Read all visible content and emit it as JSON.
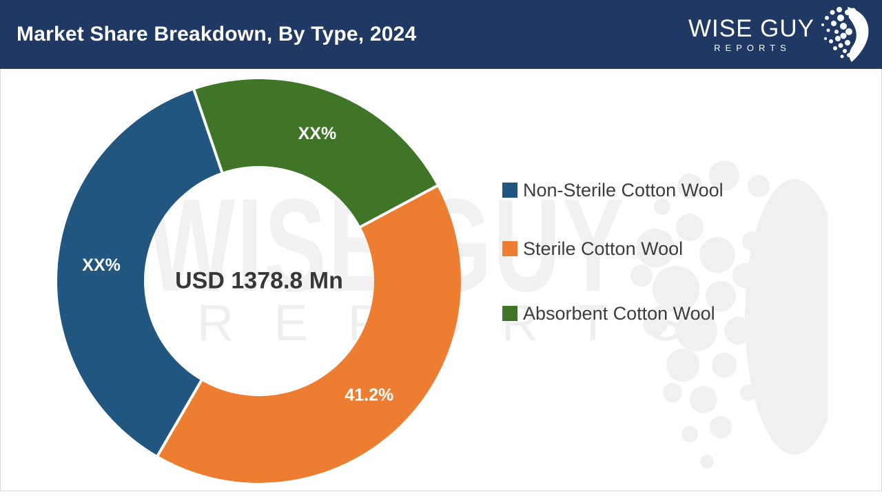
{
  "header": {
    "title": "Market Share Breakdown, By Type, 2024",
    "brand": {
      "name": "WISE GUY",
      "tagline": "REPORTS"
    }
  },
  "watermark": {
    "brand": "WISE GUY",
    "tagline": "REPORTS"
  },
  "chart_data": {
    "type": "donut",
    "title": "Market Share Breakdown, By Type, 2024",
    "center_label": "USD 1378.8 Mn",
    "start_angle_deg": 108.8,
    "hole_ratio": 0.57,
    "legend_position": "right",
    "series": [
      {
        "name": "Non-Sterile Cotton Wool",
        "slice_label": "XX%",
        "pct": 36.4,
        "color": "#205680"
      },
      {
        "name": "Sterile Cotton Wool",
        "slice_label": "41.2%",
        "pct": 41.2,
        "color": "#ED7D31"
      },
      {
        "name": "Absorbent Cotton Wool",
        "slice_label": "XX%",
        "pct": 22.4,
        "color": "#3F7527"
      }
    ]
  },
  "theme": {
    "header_bg": "#1F3864",
    "title_color": "#FFFFFF",
    "center_label_color": "#373737",
    "legend_text_color": "#3C3C3C",
    "slice_label_color": "#FFFFFF",
    "watermark_color": "#F1F1F1",
    "frame_border": "#D9D9D9"
  }
}
